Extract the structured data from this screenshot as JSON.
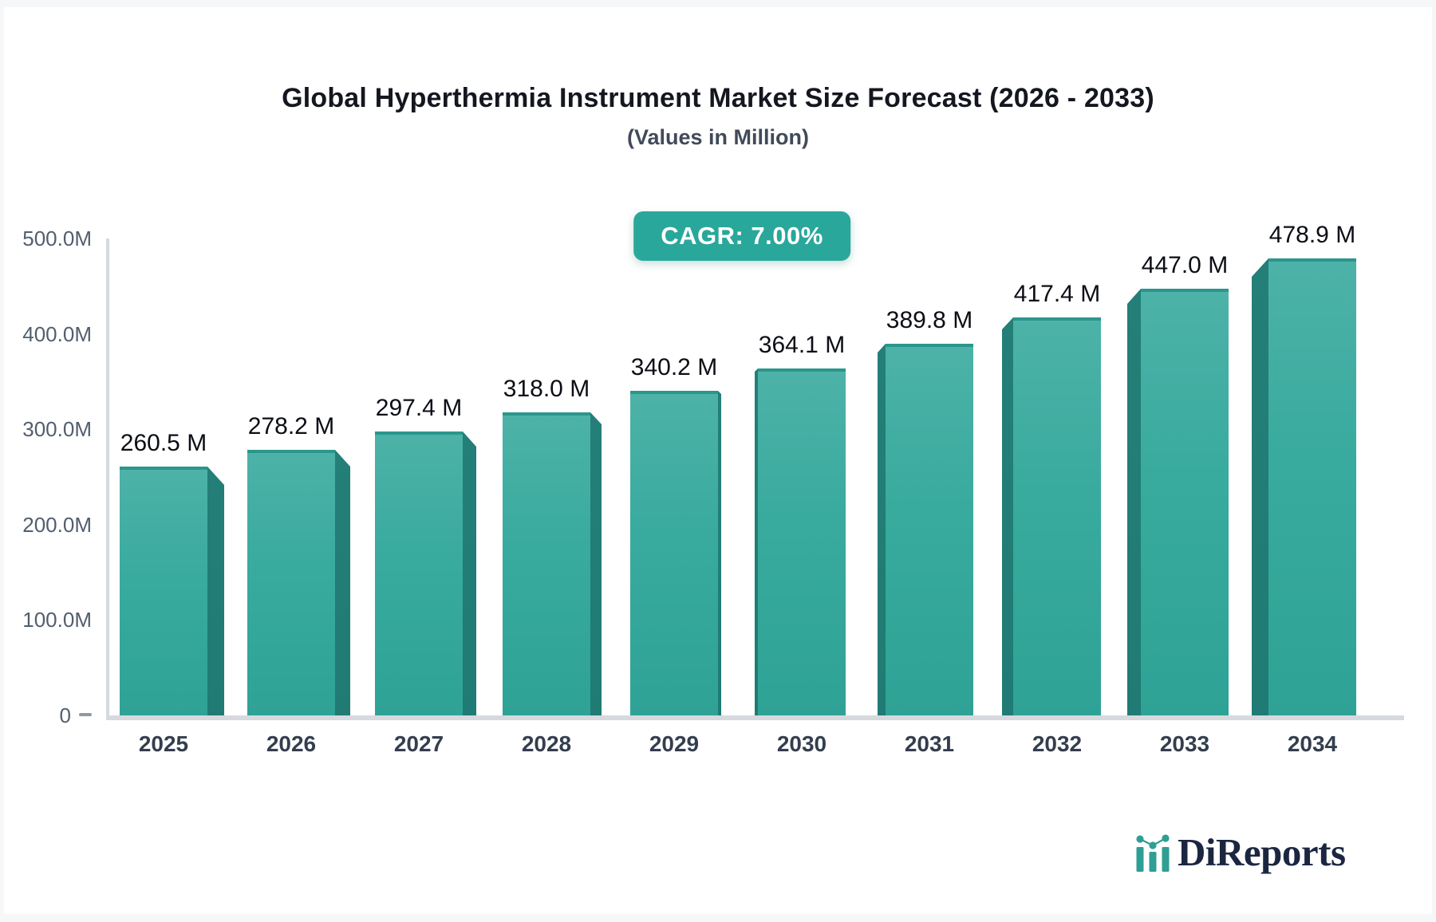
{
  "header": {
    "title": "Global Hyperthermia Instrument Market Size Forecast (2026 - 2033)",
    "subtitle": "(Values in Million)",
    "cagr_label": "CAGR: 7.00%"
  },
  "chart_data": {
    "type": "bar",
    "title": "Global Hyperthermia Instrument Market Size Forecast (2026 - 2033)",
    "subtitle": "(Values in Million)",
    "categories": [
      "2025",
      "2026",
      "2027",
      "2028",
      "2029",
      "2030",
      "2031",
      "2032",
      "2033",
      "2034"
    ],
    "values": [
      260.5,
      278.2,
      297.4,
      318.0,
      340.2,
      364.1,
      389.8,
      417.4,
      447.0,
      478.9
    ],
    "value_labels": [
      "260.5 M",
      "278.2 M",
      "297.4 M",
      "318.0 M",
      "340.2 M",
      "364.1 M",
      "389.8 M",
      "417.4 M",
      "447.0 M",
      "478.9 M"
    ],
    "unit": "Million",
    "cagr": "7.00%",
    "y_ticks": [
      "500.0M",
      "400.0M",
      "300.0M",
      "200.0M",
      "100.0M",
      "0"
    ],
    "ylim": [
      0,
      500
    ],
    "xlabel": "",
    "ylabel": "",
    "grid": false,
    "legend": null,
    "bar_style": "3d-perspective"
  },
  "colors": {
    "accent": "#2aa79b",
    "bar_face_top": "#4db2a8",
    "bar_face_bottom": "#2fa296",
    "bar_side": "#1f7b73",
    "bar_top_edge": "#2b968c",
    "axis_line": "#d6d9de",
    "title_text": "#14171f",
    "subtitle_text": "#414a59",
    "y_tick_text": "#525e6e",
    "x_label_text": "#333e4e",
    "value_label_text": "#0b0e14",
    "logo_text": "#1b2741",
    "logo_icon": "#2f9e93",
    "badge_text": "#ffffff",
    "card_background": "#ffffff",
    "frame_background": "#f6f7f8"
  },
  "branding": {
    "logo_text": "DiReports",
    "logo_icon": "bar-line-chart-icon"
  }
}
